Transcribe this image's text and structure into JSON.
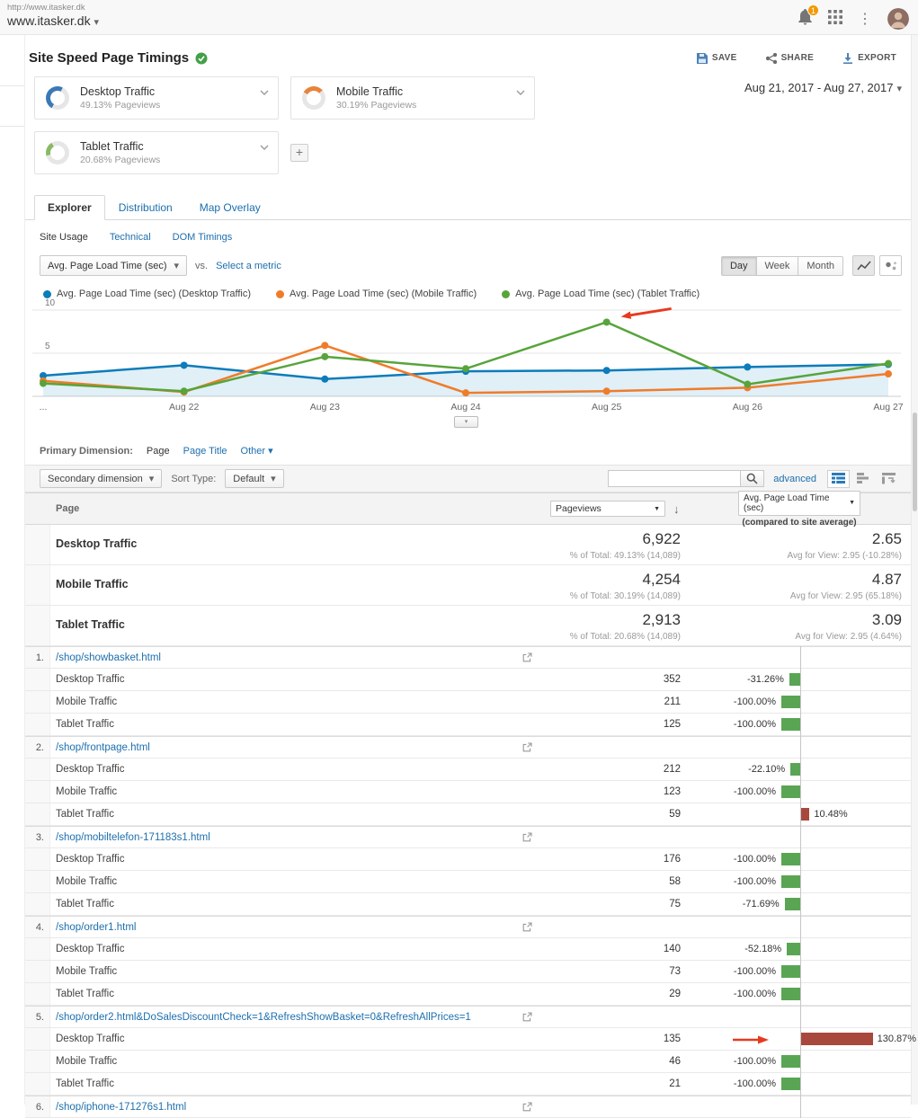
{
  "topbar": {
    "url_small": "http://www.itasker.dk",
    "account_name": "www.itasker.dk",
    "notification_count": "1"
  },
  "icons": {
    "caret_down": "▾",
    "kebab": "⋮",
    "select_arrow": "▼",
    "sort_desc": "↓",
    "plus": "+"
  },
  "header": {
    "title": "Site Speed Page Timings",
    "save_label": "SAVE",
    "share_label": "SHARE",
    "export_label": "EXPORT"
  },
  "date_range": "Aug 21, 2017 - Aug 27, 2017",
  "segments": {
    "cards": [
      {
        "name": "Desktop Traffic",
        "subtitle": "49.13% Pageviews",
        "pct": 49.13,
        "color": "#3a79b5"
      },
      {
        "name": "Mobile Traffic",
        "subtitle": "30.19% Pageviews",
        "pct": 30.19,
        "color": "#e8833a"
      },
      {
        "name": "Tablet Traffic",
        "subtitle": "20.68% Pageviews",
        "pct": 20.68,
        "color": "#8ab966"
      }
    ]
  },
  "tabs": {
    "items": [
      {
        "label": "Explorer",
        "active": true
      },
      {
        "label": "Distribution",
        "active": false
      },
      {
        "label": "Map Overlay",
        "active": false
      }
    ]
  },
  "subtabs": {
    "items": [
      {
        "label": "Site Usage",
        "active": true
      },
      {
        "label": "Technical",
        "active": false
      },
      {
        "label": "DOM Timings",
        "active": false
      }
    ]
  },
  "metric_controls": {
    "metric_dropdown": "Avg. Page Load Time (sec)",
    "vs_label": "vs.",
    "select_metric": "Select a metric",
    "granularity": [
      "Day",
      "Week",
      "Month"
    ],
    "granularity_active": "Day"
  },
  "chart_data": {
    "type": "line",
    "x": [
      "...",
      "Aug 22",
      "Aug 23",
      "Aug 24",
      "Aug 25",
      "Aug 26",
      "Aug 27"
    ],
    "ylim": [
      0,
      10
    ],
    "yticks": [
      5,
      10
    ],
    "grid": true,
    "legend_position": "top",
    "series": [
      {
        "name": "Avg. Page Load Time (sec) (Desktop Traffic)",
        "color": "#0c7cba",
        "area": true,
        "values": [
          2.4,
          3.6,
          2.0,
          2.9,
          3.0,
          3.4,
          3.7
        ]
      },
      {
        "name": "Avg. Page Load Time (sec) (Mobile Traffic)",
        "color": "#ef7c2a",
        "area": false,
        "values": [
          1.8,
          0.5,
          5.9,
          0.4,
          0.6,
          1.0,
          2.6
        ]
      },
      {
        "name": "Avg. Page Load Time (sec) (Tablet Traffic)",
        "color": "#57a43b",
        "area": false,
        "values": [
          1.5,
          0.6,
          4.6,
          3.2,
          8.6,
          1.4,
          3.8
        ]
      }
    ],
    "annotation": {
      "type": "arrow",
      "series": 2,
      "point": 4,
      "color": "#e8391f",
      "note": "red arrow pointing at Tablet Traffic peak on Aug 25"
    }
  },
  "dimension_bar": {
    "label": "Primary Dimension:",
    "options": [
      {
        "label": "Page",
        "active": true
      },
      {
        "label": "Page Title",
        "active": false
      },
      {
        "label": "Other",
        "active": false
      }
    ]
  },
  "table_controls": {
    "secondary_dimension": "Secondary dimension",
    "sort_type_label": "Sort Type:",
    "sort_type_value": "Default",
    "search_value": "",
    "advanced_label": "advanced"
  },
  "table": {
    "columns": {
      "page": "Page",
      "pageviews": "Pageviews",
      "metric": "Avg. Page Load Time (sec)",
      "metric_note": "(compared to site average)"
    },
    "summary_rows": [
      {
        "label": "Desktop Traffic",
        "pageviews": "6,922",
        "pageviews_note": "% of Total: 49.13% (14,089)",
        "metric": "2.65",
        "metric_note": "Avg for View: 2.95 (-10.28%)"
      },
      {
        "label": "Mobile Traffic",
        "pageviews": "4,254",
        "pageviews_note": "% of Total: 30.19% (14,089)",
        "metric": "4.87",
        "metric_note": "Avg for View: 2.95 (65.18%)"
      },
      {
        "label": "Tablet Traffic",
        "pageviews": "2,913",
        "pageviews_note": "% of Total: 20.68% (14,089)",
        "metric": "3.09",
        "metric_note": "Avg for View: 2.95 (4.64%)"
      }
    ],
    "page_rows": [
      {
        "index": "1.",
        "url": "/shop/showbasket.html",
        "segments": [
          {
            "label": "Desktop Traffic",
            "pageviews": "352",
            "pct": "-31.26%",
            "value": -31.26
          },
          {
            "label": "Mobile Traffic",
            "pageviews": "211",
            "pct": "-100.00%",
            "value": -100.0
          },
          {
            "label": "Tablet Traffic",
            "pageviews": "125",
            "pct": "-100.00%",
            "value": -100.0
          }
        ]
      },
      {
        "index": "2.",
        "url": "/shop/frontpage.html",
        "segments": [
          {
            "label": "Desktop Traffic",
            "pageviews": "212",
            "pct": "-22.10%",
            "value": -22.1
          },
          {
            "label": "Mobile Traffic",
            "pageviews": "123",
            "pct": "-100.00%",
            "value": -100.0
          },
          {
            "label": "Tablet Traffic",
            "pageviews": "59",
            "pct": "10.48%",
            "value": 10.48
          }
        ]
      },
      {
        "index": "3.",
        "url": "/shop/mobiltelefon-171183s1.html",
        "segments": [
          {
            "label": "Desktop Traffic",
            "pageviews": "176",
            "pct": "-100.00%",
            "value": -100.0
          },
          {
            "label": "Mobile Traffic",
            "pageviews": "58",
            "pct": "-100.00%",
            "value": -100.0
          },
          {
            "label": "Tablet Traffic",
            "pageviews": "75",
            "pct": "-71.69%",
            "value": -71.69
          }
        ]
      },
      {
        "index": "4.",
        "url": "/shop/order1.html",
        "segments": [
          {
            "label": "Desktop Traffic",
            "pageviews": "140",
            "pct": "-52.18%",
            "value": -52.18
          },
          {
            "label": "Mobile Traffic",
            "pageviews": "73",
            "pct": "-100.00%",
            "value": -100.0
          },
          {
            "label": "Tablet Traffic",
            "pageviews": "29",
            "pct": "-100.00%",
            "value": -100.0
          }
        ]
      },
      {
        "index": "5.",
        "url": "/shop/order2.html&DoSalesDiscountCheck=1&RefreshShowBasket=0&RefreshAllPrices=1",
        "segments": [
          {
            "label": "Desktop Traffic",
            "pageviews": "135",
            "pct": "130.87%",
            "value": 130.87,
            "arrow": true
          },
          {
            "label": "Mobile Traffic",
            "pageviews": "46",
            "pct": "-100.00%",
            "value": -100.0
          },
          {
            "label": "Tablet Traffic",
            "pageviews": "21",
            "pct": "-100.00%",
            "value": -100.0
          }
        ]
      },
      {
        "index": "6.",
        "url": "/shop/iphone-171276s1.html",
        "segments": []
      }
    ]
  }
}
